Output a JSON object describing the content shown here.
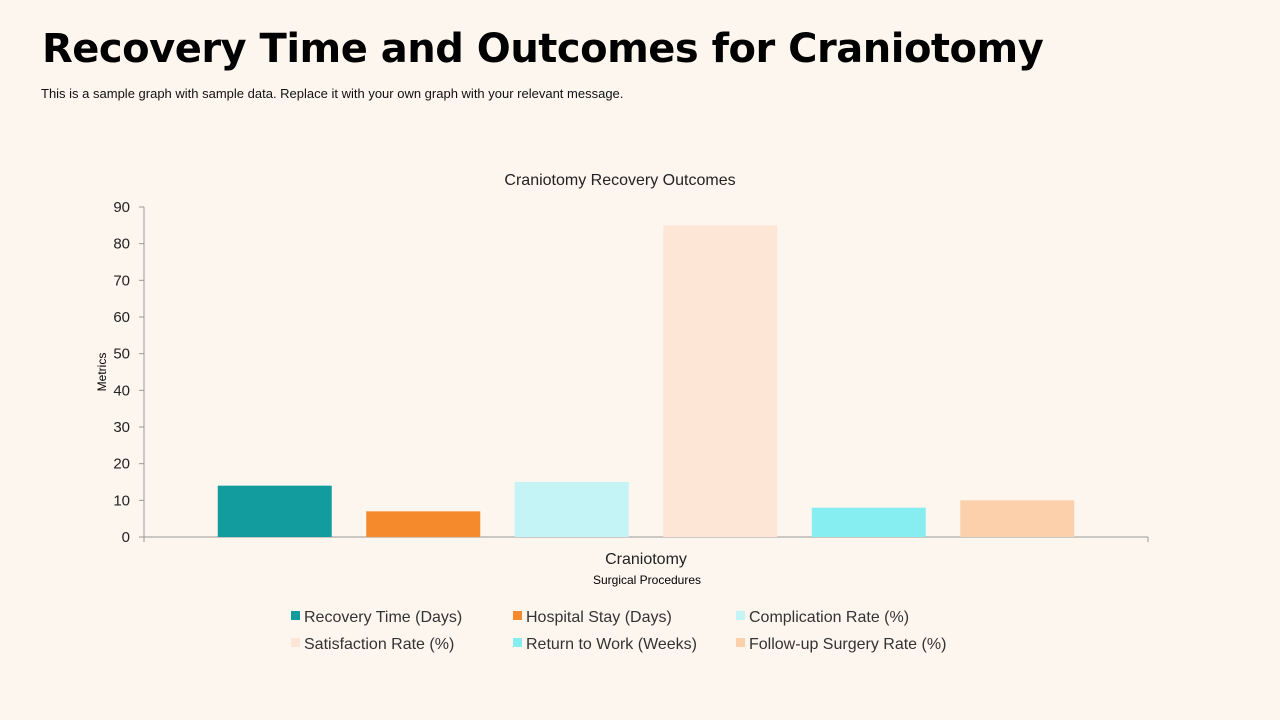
{
  "slide": {
    "title": "Recovery Time and Outcomes for Craniotomy",
    "subtitle": "This is a sample graph with sample data. Replace  it with your own graph with your relevant message."
  },
  "chart_data": {
    "type": "bar",
    "title": "Craniotomy Recovery Outcomes",
    "categories": [
      "Craniotomy"
    ],
    "xlabel": "Surgical Procedures",
    "ylabel": "Metrics",
    "ylim": [
      0,
      90
    ],
    "yticks": [
      0,
      10,
      20,
      30,
      40,
      50,
      60,
      70,
      80,
      90
    ],
    "grid": false,
    "legend_position": "bottom",
    "series": [
      {
        "name": "Recovery Time (Days)",
        "values": [
          14
        ],
        "color": "#139c9e"
      },
      {
        "name": "Hospital Stay (Days)",
        "values": [
          7
        ],
        "color": "#f58a2c"
      },
      {
        "name": "Complication Rate (%)",
        "values": [
          15
        ],
        "color": "#c5f4f7"
      },
      {
        "name": "Satisfaction Rate (%)",
        "values": [
          85
        ],
        "color": "#fde6d6"
      },
      {
        "name": "Return to Work (Weeks)",
        "values": [
          8
        ],
        "color": "#86eef0"
      },
      {
        "name": "Follow-up Surgery Rate (%)",
        "values": [
          10
        ],
        "color": "#fcd0aa"
      }
    ]
  }
}
